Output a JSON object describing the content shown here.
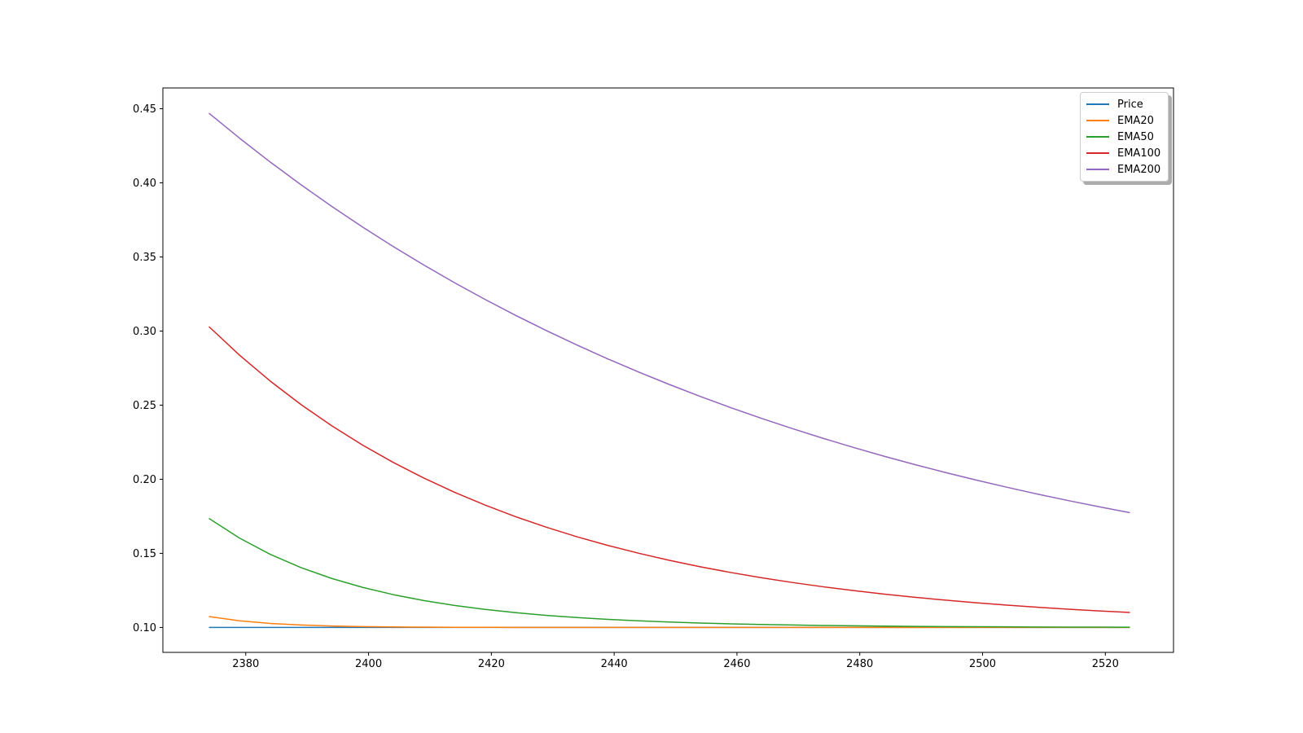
{
  "figure": {
    "background": "#ffffff",
    "title": ""
  },
  "chart_data": {
    "type": "line",
    "title": "",
    "xlabel": "",
    "ylabel": "",
    "grid": false,
    "legend_position": "upper right",
    "legend_shadow": true,
    "legend_labels": [
      "Price",
      "EMA20",
      "EMA50",
      "EMA100",
      "EMA200"
    ],
    "xlim": [
      2366.5,
      2531.1
    ],
    "ylim": [
      0.0832,
      0.464
    ],
    "x_ticks": [
      2380,
      2400,
      2420,
      2440,
      2460,
      2480,
      2500,
      2520
    ],
    "y_ticks": [
      0.1,
      0.15,
      0.2,
      0.25,
      0.3,
      0.35,
      0.4,
      0.45
    ],
    "x_start": 2374,
    "x_step": 5,
    "series": [
      {
        "name": "Price",
        "color": "#1f77b4",
        "values": [
          0.1,
          0.1,
          0.1,
          0.1,
          0.1,
          0.1,
          0.1,
          0.1,
          0.1,
          0.1,
          0.1,
          0.1,
          0.1,
          0.1,
          0.1,
          0.1,
          0.1,
          0.1,
          0.1,
          0.1,
          0.1,
          0.1,
          0.1,
          0.1,
          0.1,
          0.1,
          0.1,
          0.1,
          0.1,
          0.1,
          0.1
        ]
      },
      {
        "name": "EMA20",
        "color": "#ff7f0e",
        "values": [
          0.1074,
          0.10449,
          0.10272,
          0.10165,
          0.101,
          0.10061,
          0.10037,
          0.10022,
          0.10013,
          0.10008,
          0.10005,
          0.10003,
          0.10002,
          0.10001,
          0.10001,
          0.1,
          0.1,
          0.1,
          0.1,
          0.1,
          0.1,
          0.1,
          0.1,
          0.1,
          0.1,
          0.1,
          0.1,
          0.1,
          0.1,
          0.1,
          0.1
        ]
      },
      {
        "name": "EMA50",
        "color": "#2ca02c",
        "values": [
          0.1736,
          0.16026,
          0.14933,
          0.14039,
          0.13307,
          0.12708,
          0.12217,
          0.11815,
          0.11486,
          0.11217,
          0.10996,
          0.10816,
          0.10668,
          0.10547,
          0.10448,
          0.10366,
          0.103,
          0.10246,
          0.10201,
          0.10165,
          0.10135,
          0.1011,
          0.1009,
          0.10074,
          0.10061,
          0.1005,
          0.10041,
          0.10033,
          0.10027,
          0.10022,
          0.10018
        ]
      },
      {
        "name": "EMA100",
        "color": "#d62728",
        "values": [
          0.303,
          0.28368,
          0.2662,
          0.25039,
          0.23608,
          0.22313,
          0.21141,
          0.20081,
          0.19121,
          0.18253,
          0.17468,
          0.16757,
          0.16114,
          0.15532,
          0.15006,
          0.1453,
          0.14099,
          0.13708,
          0.13356,
          0.13036,
          0.12747,
          0.12486,
          0.12249,
          0.12035,
          0.11842,
          0.11666,
          0.11508,
          0.11364,
          0.11234,
          0.11117,
          0.11011
        ]
      },
      {
        "name": "EMA200",
        "color": "#9467bd",
        "values": [
          0.447,
          0.43008,
          0.41398,
          0.39867,
          0.3841,
          0.37024,
          0.35706,
          0.34453,
          0.3326,
          0.32126,
          0.31047,
          0.3002,
          0.29044,
          0.28115,
          0.27232,
          0.26391,
          0.25592,
          0.24831,
          0.24108,
          0.2342,
          0.22765,
          0.22143,
          0.21551,
          0.20987,
          0.20451,
          0.19942,
          0.19457,
          0.18996,
          0.18557,
          0.1814,
          0.17743
        ]
      }
    ]
  }
}
